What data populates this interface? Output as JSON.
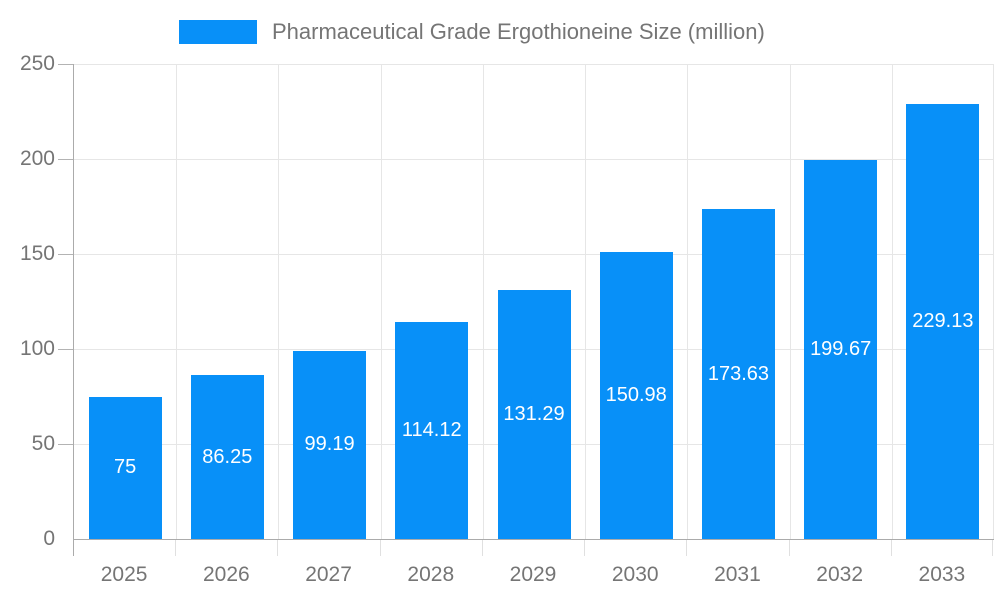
{
  "chart_data": {
    "type": "bar",
    "title": "Pharmaceutical Grade Ergothioneine Size (million)",
    "categories": [
      "2025",
      "2026",
      "2027",
      "2028",
      "2029",
      "2030",
      "2031",
      "2032",
      "2033"
    ],
    "values": [
      75,
      86.25,
      99.19,
      114.12,
      131.29,
      150.98,
      173.63,
      199.67,
      229.13
    ],
    "value_labels": [
      "75",
      "86.25",
      "99.19",
      "114.12",
      "131.29",
      "150.98",
      "173.63",
      "199.67",
      "229.13"
    ],
    "xlabel": "",
    "ylabel": "",
    "ylim": [
      0,
      250
    ],
    "yticks": [
      0,
      50,
      100,
      150,
      200,
      250
    ],
    "grid": true,
    "legend_position": "top",
    "colors": {
      "bar": "#0890f8",
      "grid": "#e6e6e6",
      "axis": "#ababab",
      "tick_text": "#757575",
      "value_text": "#ffffff",
      "background": "#ffffff"
    }
  }
}
